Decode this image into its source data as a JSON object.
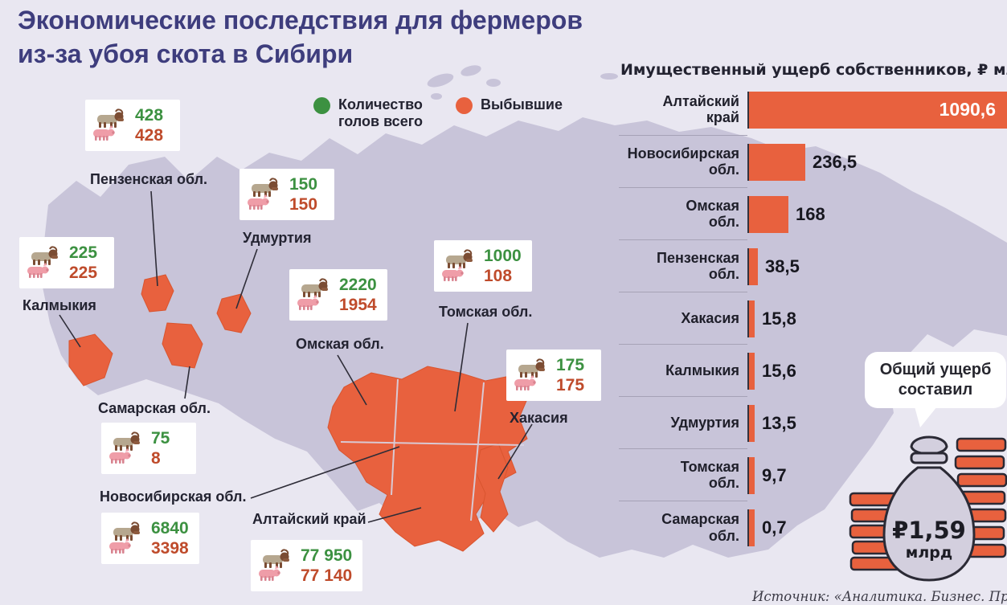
{
  "title": {
    "line1": "Экономические последствия для фермеров",
    "line2": "из-за убоя скота в Сибири"
  },
  "legend": {
    "total_label": "Количество голов всего",
    "lost_label": "Выбывшие"
  },
  "map_callouts": [
    {
      "region": "Пензенская обл.",
      "total": "428",
      "lost": "428"
    },
    {
      "region": "Удмуртия",
      "total": "150",
      "lost": "150"
    },
    {
      "region": "Калмыкия",
      "total": "225",
      "lost": "225"
    },
    {
      "region": "Омская обл.",
      "total": "2220",
      "lost": "1954"
    },
    {
      "region": "Томская обл.",
      "total": "1000",
      "lost": "108"
    },
    {
      "region": "Хакасия",
      "total": "175",
      "lost": "175"
    },
    {
      "region": "Самарская обл.",
      "total": "75",
      "lost": "8"
    },
    {
      "region": "Новосибирская обл.",
      "total": "6840",
      "lost": "3398"
    },
    {
      "region": "Алтайский край",
      "total": "77 950",
      "lost": "77 140"
    }
  ],
  "chart": {
    "title": "Имущественный ущерб собственников, ₽ млн",
    "rows": [
      {
        "label_lines": [
          "Алтайский",
          "край"
        ],
        "value": "1090,6"
      },
      {
        "label_lines": [
          "Новосибирская",
          "обл."
        ],
        "value": "236,5"
      },
      {
        "label_lines": [
          "Омская",
          "обл."
        ],
        "value": "168"
      },
      {
        "label_lines": [
          "Пензенская",
          "обл."
        ],
        "value": "38,5"
      },
      {
        "label_lines": [
          "Хакасия"
        ],
        "value": "15,8"
      },
      {
        "label_lines": [
          "Калмыкия"
        ],
        "value": "15,6"
      },
      {
        "label_lines": [
          "Удмуртия"
        ],
        "value": "13,5"
      },
      {
        "label_lines": [
          "Томская",
          "обл."
        ],
        "value": "9,7"
      },
      {
        "label_lines": [
          "Самарская",
          "обл."
        ],
        "value": "0,7"
      }
    ]
  },
  "total_box": {
    "line1": "Общий ущерб",
    "line2": "составил"
  },
  "money": {
    "amount": "₽1,59",
    "unit": "млрд"
  },
  "source": {
    "text": "Источник: «Аналитика. Бизнес. Про"
  },
  "colors": {
    "orange": "#E8613E",
    "green": "#3C9141",
    "red": "#BF4B2B",
    "map": "#C8C4D9",
    "title": "#3E3D7D",
    "background": "#E9E7F1"
  },
  "chart_data": [
    {
      "type": "bar",
      "orientation": "horizontal",
      "title": "Имущественный ущерб собственников, ₽ млн",
      "categories": [
        "Алтайский край",
        "Новосибирская обл.",
        "Омская обл.",
        "Пензенская обл.",
        "Хакасия",
        "Калмыкия",
        "Удмуртия",
        "Томская обл.",
        "Самарская обл."
      ],
      "values": [
        1090.6,
        236.5,
        168,
        38.5,
        15.8,
        15.6,
        13.5,
        9.7,
        0.7
      ],
      "xlim": [
        0,
        1100
      ],
      "bar_color": "#E8613E",
      "grid": false,
      "legend_position": "none",
      "annotation_total": "₽1,59 млрд"
    },
    {
      "type": "table",
      "columns": [
        "Регион",
        "Количество голов всего",
        "Выбывшие"
      ],
      "rows": [
        [
          "Пензенская обл.",
          428,
          428
        ],
        [
          "Удмуртия",
          150,
          150
        ],
        [
          "Калмыкия",
          225,
          225
        ],
        [
          "Омская обл.",
          2220,
          1954
        ],
        [
          "Томская обл.",
          1000,
          108
        ],
        [
          "Хакасия",
          175,
          175
        ],
        [
          "Самарская обл.",
          75,
          8
        ],
        [
          "Новосибирская обл.",
          6840,
          3398
        ],
        [
          "Алтайский край",
          77950,
          77140
        ]
      ]
    }
  ]
}
